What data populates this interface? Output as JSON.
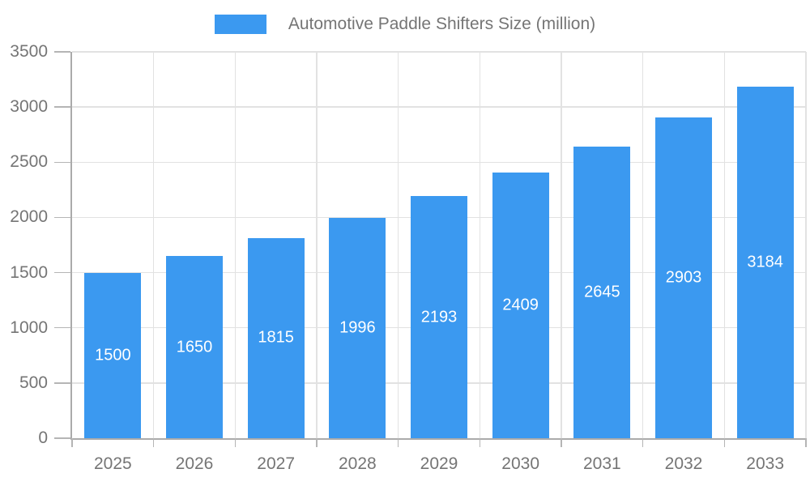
{
  "legend": {
    "label": "Automotive Paddle Shifters Size (million)"
  },
  "chart_data": {
    "type": "bar",
    "title": "Automotive Paddle Shifters Size (million)",
    "categories": [
      "2025",
      "2026",
      "2027",
      "2028",
      "2029",
      "2030",
      "2031",
      "2032",
      "2033"
    ],
    "values": [
      1500,
      1650,
      1815,
      1996,
      2193,
      2409,
      2645,
      2903,
      3184
    ],
    "xlabel": "",
    "ylabel": "",
    "ylim": [
      0,
      3500
    ],
    "ytick_step": 500,
    "yticks": [
      0,
      500,
      1000,
      1500,
      2000,
      2500,
      3000,
      3500
    ],
    "grid": true,
    "legend_position": "top-center",
    "value_labels": "inside-center",
    "colors": {
      "bar": "#3B99F0",
      "value_label": "#FFFFFF",
      "axis_text": "#757575",
      "gridline": "#E2E2E2",
      "axis_line": "#ABABAB",
      "tick": "#B5B5B5",
      "background": "#FFFFFF"
    }
  }
}
